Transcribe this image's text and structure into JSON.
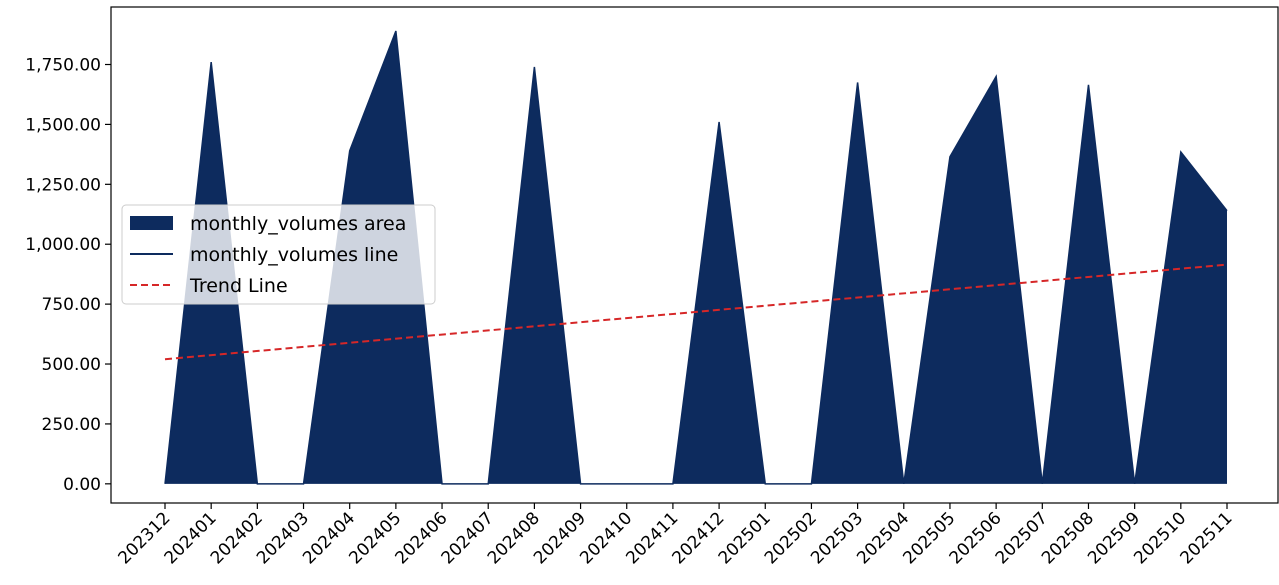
{
  "chart_data": {
    "type": "area",
    "title": "",
    "xlabel": "",
    "ylabel": "",
    "x": [
      "202312",
      "202401",
      "202402",
      "202403",
      "202404",
      "202405",
      "202406",
      "202407",
      "202408",
      "202409",
      "202410",
      "202411",
      "202412",
      "202501",
      "202502",
      "202503",
      "202504",
      "202505",
      "202506",
      "202507",
      "202508",
      "202509",
      "202510",
      "202511"
    ],
    "series": [
      {
        "name": "monthly_volumes",
        "values": [
          0,
          1760,
          0,
          0,
          1390,
          1890,
          0,
          0,
          1740,
          0,
          0,
          0,
          1510,
          0,
          0,
          1675,
          0,
          1365,
          1700,
          0,
          1665,
          0,
          1385,
          1140
        ],
        "area_color": "#0d2b5e",
        "line_color": "#0d2b5e"
      }
    ],
    "trend": {
      "name": "Trend Line",
      "start": 520,
      "end": 915,
      "color": "#d62728"
    },
    "ylim": [
      -80,
      1990
    ],
    "yticks": [
      0,
      250,
      500,
      750,
      1000,
      1250,
      1500,
      1750
    ],
    "ytick_labels": [
      "0.00",
      "250.00",
      "500.00",
      "750.00",
      "1,000.00",
      "1,250.00",
      "1,500.00",
      "1,750.00"
    ],
    "legend": {
      "placement": "center-left",
      "items": [
        {
          "label": "monthly_volumes area",
          "kind": "patch",
          "color": "#0d2b5e"
        },
        {
          "label": "monthly_volumes line",
          "kind": "line",
          "color": "#0d2b5e"
        },
        {
          "label": "Trend Line",
          "kind": "dashed",
          "color": "#d62728"
        }
      ]
    },
    "grid": false
  }
}
